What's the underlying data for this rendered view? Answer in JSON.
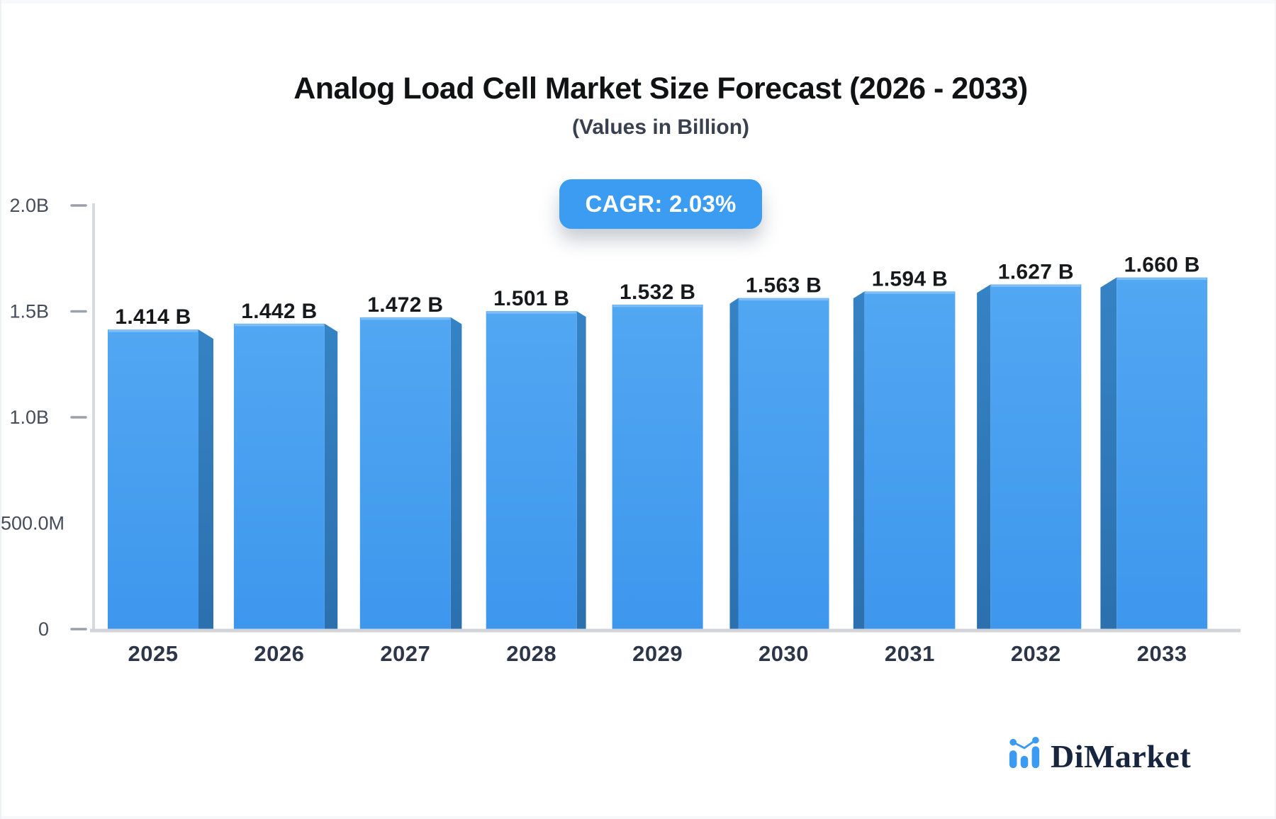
{
  "header": {
    "title": "Analog Load Cell Market Size Forecast (2026 - 2033)",
    "subtitle": "(Values in Billion)",
    "cagr_label": "CAGR: 2.03%"
  },
  "brand": {
    "name": "DiMarket"
  },
  "chart_data": {
    "type": "bar",
    "title": "Analog Load Cell Market Size Forecast (2026 - 2033)",
    "subtitle": "(Values in Billion)",
    "cagr": "2.03%",
    "unit": "B",
    "categories": [
      "2025",
      "2026",
      "2027",
      "2028",
      "2029",
      "2030",
      "2031",
      "2032",
      "2033"
    ],
    "values": [
      1.414,
      1.442,
      1.472,
      1.501,
      1.532,
      1.563,
      1.594,
      1.627,
      1.66
    ],
    "value_labels": [
      "1.414 B",
      "1.442 B",
      "1.472 B",
      "1.501 B",
      "1.532 B",
      "1.563 B",
      "1.594 B",
      "1.627 B",
      "1.660 B"
    ],
    "ylim": [
      0,
      2.0
    ],
    "yticks": [
      {
        "label": "0",
        "value": 0,
        "dash": true
      },
      {
        "label": "500.0M",
        "value": 0.5,
        "dash": false
      },
      {
        "label": "1.0B",
        "value": 1.0,
        "dash": true
      },
      {
        "label": "1.5B",
        "value": 1.5,
        "dash": true
      },
      {
        "label": "2.0B",
        "value": 2.0,
        "dash": true
      }
    ],
    "grid": false,
    "legend": false,
    "style_3d": true,
    "colors": {
      "bar_front_top": "#52a7f2",
      "bar_front_bottom": "#3e97ed",
      "bar_side_top": "#3583c4",
      "bar_side_bottom": "#2c70ae",
      "bar_top_highlight": "#8ec7f6",
      "axis_line": "#d7d9de",
      "baseline": "#d3d5da",
      "tick_dash": "#9aa1aa",
      "ytick_label": "#454d5a",
      "xtick_label": "#2c3648",
      "value_label": "#17191c",
      "badge": "#3b9cf2",
      "logo_blue": "#3b9bf3",
      "logo_navy": "#17263e"
    }
  }
}
